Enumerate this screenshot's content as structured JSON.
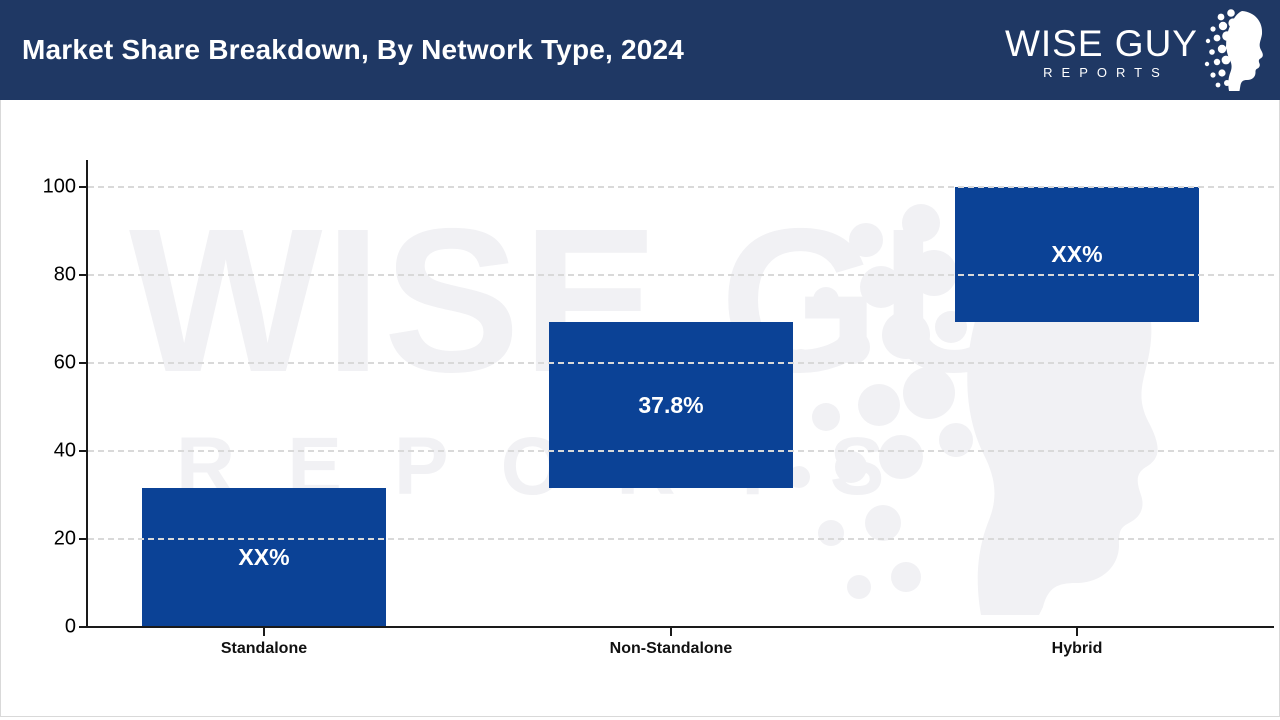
{
  "header": {
    "title": "Market Share Breakdown, By Network Type, 2024",
    "bg_color": "#1F3864",
    "logo": {
      "line1": "WISE GUY",
      "line2": "REPORTS"
    }
  },
  "watermark": {
    "line1": "WISE GUY",
    "line2": "REPORTS"
  },
  "chart_data": {
    "type": "bar",
    "subtype": "waterfall",
    "title": "Market Share Breakdown, By Network Type, 2024",
    "categories": [
      "Standalone",
      "Non-Standalone",
      "Hybrid"
    ],
    "segments": [
      {
        "category": "Standalone",
        "start": 0,
        "end": 31.5,
        "label": "XX%"
      },
      {
        "category": "Non-Standalone",
        "start": 31.5,
        "end": 69.3,
        "label": "37.8%"
      },
      {
        "category": "Hybrid",
        "start": 69.3,
        "end": 100,
        "label": "XX%"
      }
    ],
    "xlabel": "",
    "ylabel": "",
    "ylim": [
      0,
      100
    ],
    "yticks": [
      0,
      20,
      40,
      60,
      80,
      100
    ],
    "grid": "dashed-horizontal",
    "legend": "none",
    "bar_color": "#0B4296",
    "bar_label_color": "#ffffff",
    "grid_color": "#d9d9d9",
    "axis_color": "#1a1a1a"
  }
}
